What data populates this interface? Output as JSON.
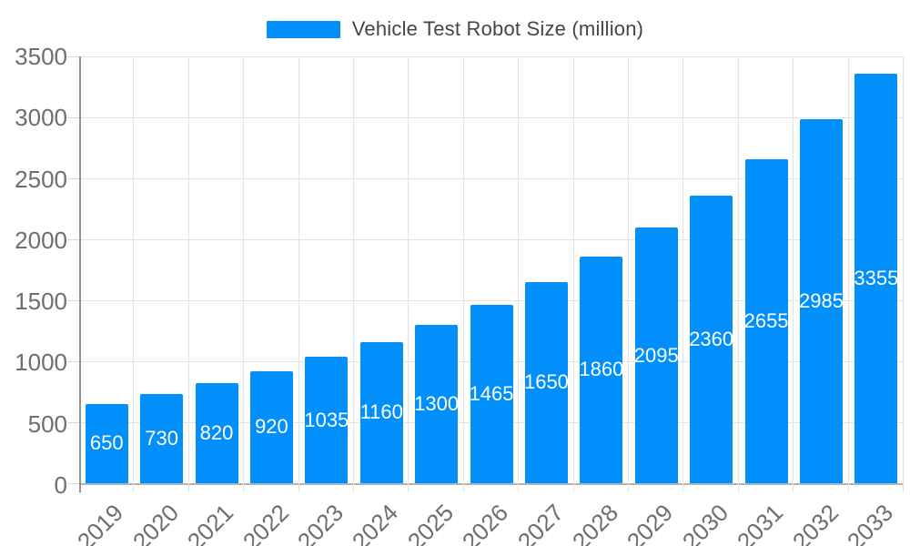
{
  "legend": {
    "label": "Vehicle Test Robot Size (million)"
  },
  "colors": {
    "bar": "#008FFB",
    "data_label": "#ffffff",
    "gridline": "#e4e4e4",
    "axis_label": "#6e6e6e",
    "legend_text": "#41464b"
  },
  "chart_data": {
    "type": "bar",
    "title": "Vehicle Test Robot Size (million)",
    "series": [
      {
        "name": "Vehicle Test Robot Size (million)",
        "values": [
          650,
          730,
          820,
          920,
          1035,
          1160,
          1300,
          1465,
          1650,
          1860,
          2095,
          2360,
          2655,
          2985,
          3355
        ]
      }
    ],
    "categories": [
      "2019",
      "2020",
      "2021",
      "2022",
      "2023",
      "2024",
      "2025",
      "2026",
      "2027",
      "2028",
      "2029",
      "2030",
      "2031",
      "2032",
      "2033"
    ],
    "xlabel": "",
    "ylabel": "",
    "ylim": [
      0,
      3500
    ],
    "yticks": [
      0,
      500,
      1000,
      1500,
      2000,
      2500,
      3000,
      3500
    ],
    "grid": true,
    "legend_position": "top",
    "data_labels": "inside-center",
    "x_label_rotation": -45
  }
}
